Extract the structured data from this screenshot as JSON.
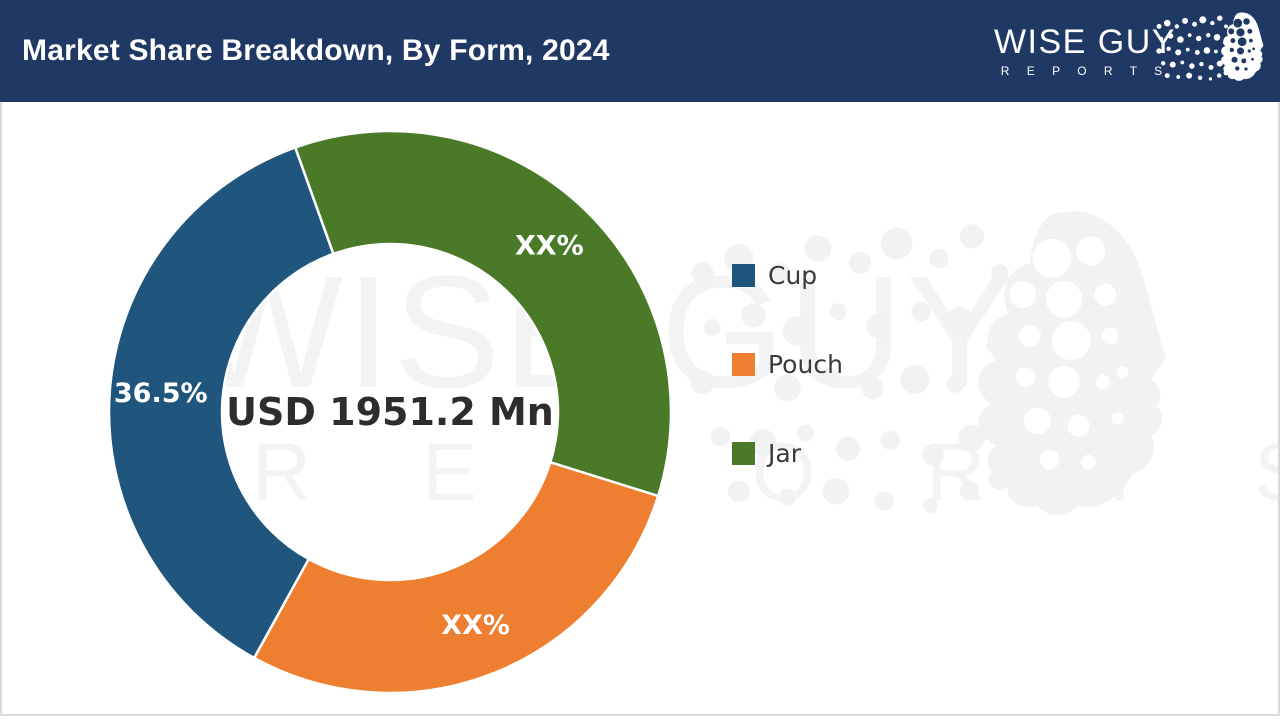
{
  "header": {
    "title": "Market Share Breakdown, By Form, 2024",
    "bg_color": "#1f3864",
    "logo": {
      "line1": "WISE GUY",
      "line2": "R E P O R T S"
    }
  },
  "watermark": {
    "line1": "WISE GUY",
    "line2": "R E P O R T S"
  },
  "chart_data": {
    "type": "pie",
    "donut": true,
    "title": "Market Share Breakdown, By Form, 2024",
    "center_label": "USD 1951.2 Mn",
    "legend_position": "right",
    "start_angle": 109.7,
    "direction": "counterclockwise",
    "series": [
      {
        "name": "Cup",
        "display": "36.5%",
        "value": 36.5,
        "color": "#20567d"
      },
      {
        "name": "Pouch",
        "display": "XX%",
        "value": 28.2,
        "color": "#ee7e30"
      },
      {
        "name": "Jar",
        "display": "XX%",
        "value": 35.3,
        "color": "#4a7a28"
      }
    ]
  }
}
